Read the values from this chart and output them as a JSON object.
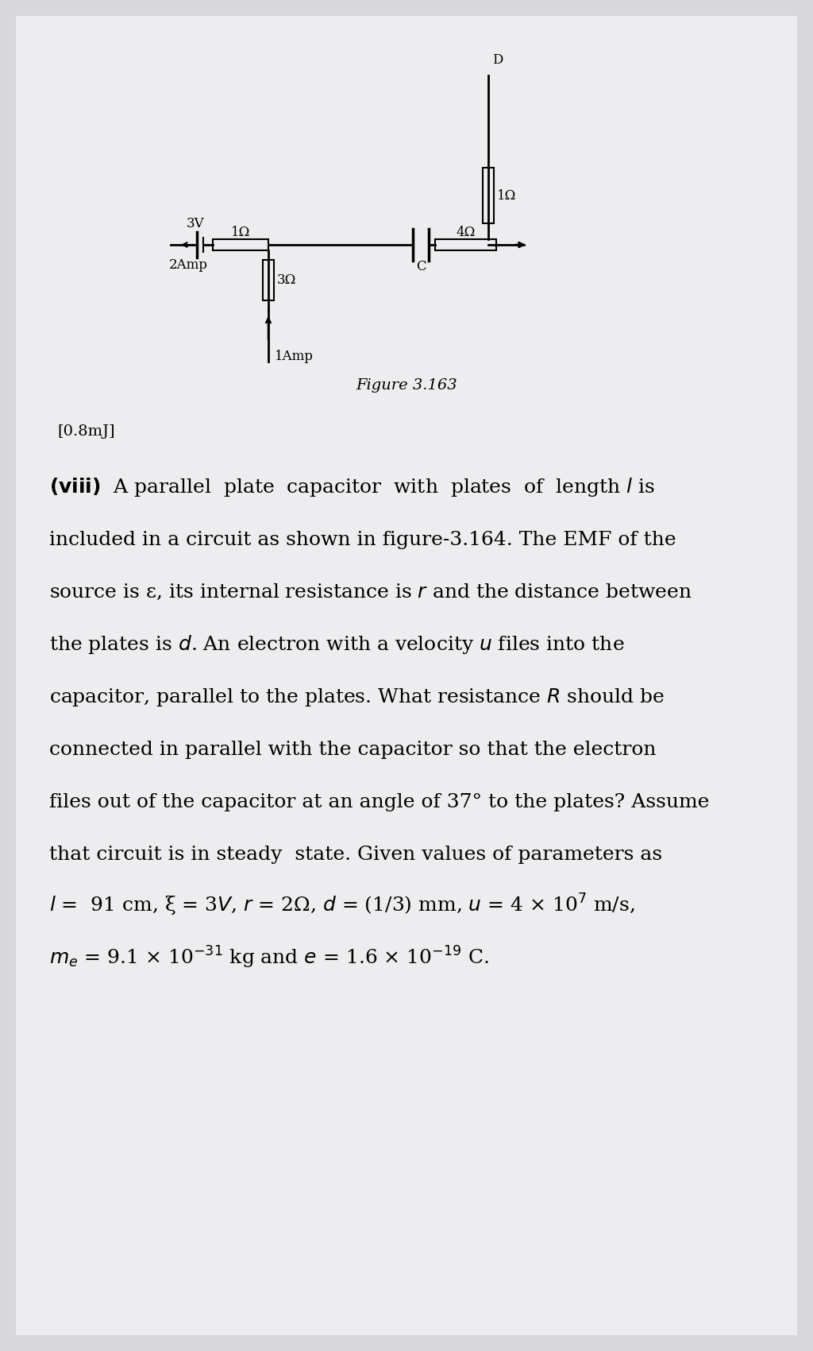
{
  "bg_color": "#d8d8da",
  "page_bg": "#ededef",
  "figure_label": "Figure 3.163",
  "answer": "[0.8mJ]",
  "font_color": "#1a1a1a",
  "para_lines": [
    "(viii)  A parallel  plate  capacitor  with  plates  of  length $l$ is",
    "included in a circuit as shown in figure-3.164. The EMF of the",
    "source is ε, its internal resistance is $r$ and the distance between",
    "the plates is $d$. An electron with a velocity $u$ files into the",
    "capacitor, parallel to the plates. What resistance $R$ should be",
    "connected in parallel with the capacitor so that the electron",
    "files out of the capacitor at an angle of 37° to the plates? Assume",
    "that circuit is in steady  state. Given values of parameters as",
    "$l$ =  91 cm, ξ = 3$V$, $r$ = 2Ω, $d$ = (1/3) mm, $u$ = 4 × 10$^7$ m/s,",
    "$m_e$ = 9.1 × 10$^{-31}$ kg and $e$ = 1.6 × 10$^{-19}$ C."
  ]
}
